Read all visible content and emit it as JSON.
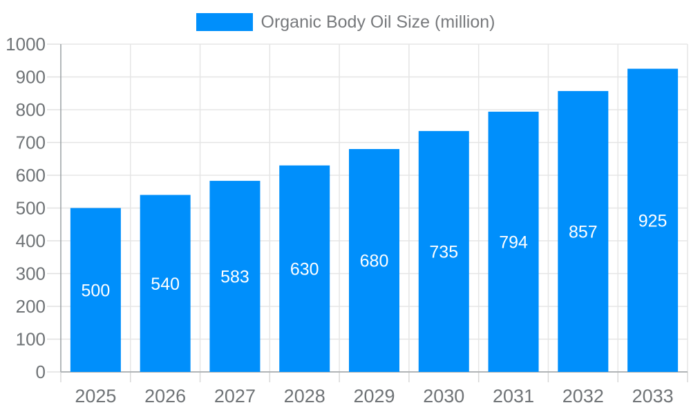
{
  "legend": {
    "label": "Organic Body Oil Size (million)"
  },
  "chart_data": {
    "type": "bar",
    "title": "Organic Body Oil Size (million)",
    "categories": [
      "2025",
      "2026",
      "2027",
      "2028",
      "2029",
      "2030",
      "2031",
      "2032",
      "2033"
    ],
    "series": [
      {
        "name": "Organic Body Oil Size (million)",
        "values": [
          500,
          540,
          583,
          630,
          680,
          735,
          794,
          857,
          925
        ]
      }
    ],
    "xlabel": "",
    "ylabel": "",
    "ylim": [
      0,
      1000
    ],
    "yticks": [
      0,
      100,
      200,
      300,
      400,
      500,
      600,
      700,
      800,
      900,
      1000
    ],
    "grid": true,
    "legend_position": "top",
    "colors": {
      "bar": "#008FFB",
      "value_label": "#ffffff",
      "grid_line": "#e5e5e5",
      "y_tick": "#e0e0e0",
      "x_tick": "#d8d8d8",
      "y_axis_line": "#9aa0a4",
      "x_axis_line": "#b0b4b6",
      "axis_label_text": "#6f7376",
      "legend_text": "#77797c"
    }
  }
}
